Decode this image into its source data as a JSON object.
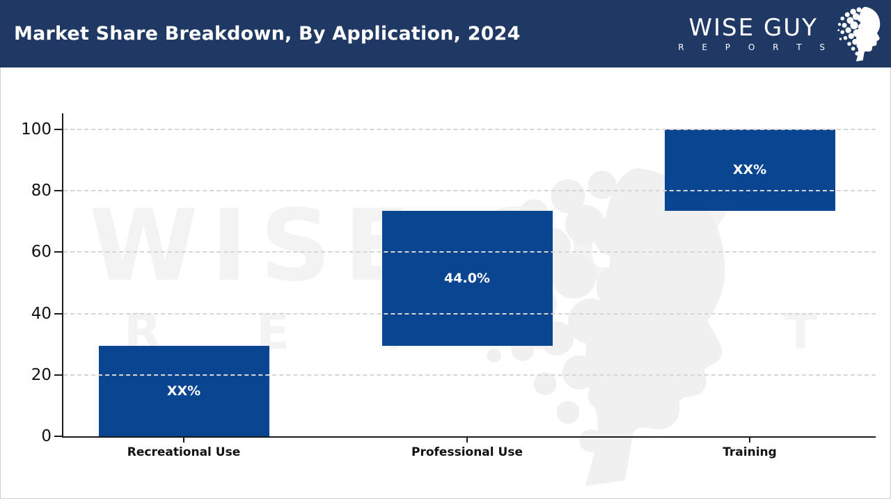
{
  "header": {
    "title": "Market Share Breakdown, By Application, 2024",
    "background_color": "#1f3864",
    "brand": {
      "line1": "WISE GUY",
      "line2": "R E P O R T S"
    }
  },
  "watermark": {
    "line1": "WISE GUY",
    "line2": "R E P O R T S"
  },
  "chart_data": {
    "type": "bar",
    "subtype": "floating-segment-waterfall",
    "title": "Market Share Breakdown, By Application, 2024",
    "categories": [
      "Recreational Use",
      "Professional Use",
      "Training"
    ],
    "segments": [
      {
        "category": "Recreational Use",
        "start": 0,
        "end": 29.5,
        "label": "XX%"
      },
      {
        "category": "Professional Use",
        "start": 29.5,
        "end": 73.5,
        "label": "44.0%"
      },
      {
        "category": "Training",
        "start": 73.5,
        "end": 100,
        "label": "XX%"
      }
    ],
    "ylim": [
      0,
      100
    ],
    "yticks": [
      0,
      20,
      40,
      60,
      80,
      100
    ],
    "xlabel": "",
    "ylabel": "",
    "grid": "horizontal-dashed",
    "legend": "none",
    "bar_color": "#0a4591",
    "bar_label_color": "#ffffff",
    "axis_color": "#1a1a1a",
    "gridline_color": "#d6d6d6"
  }
}
